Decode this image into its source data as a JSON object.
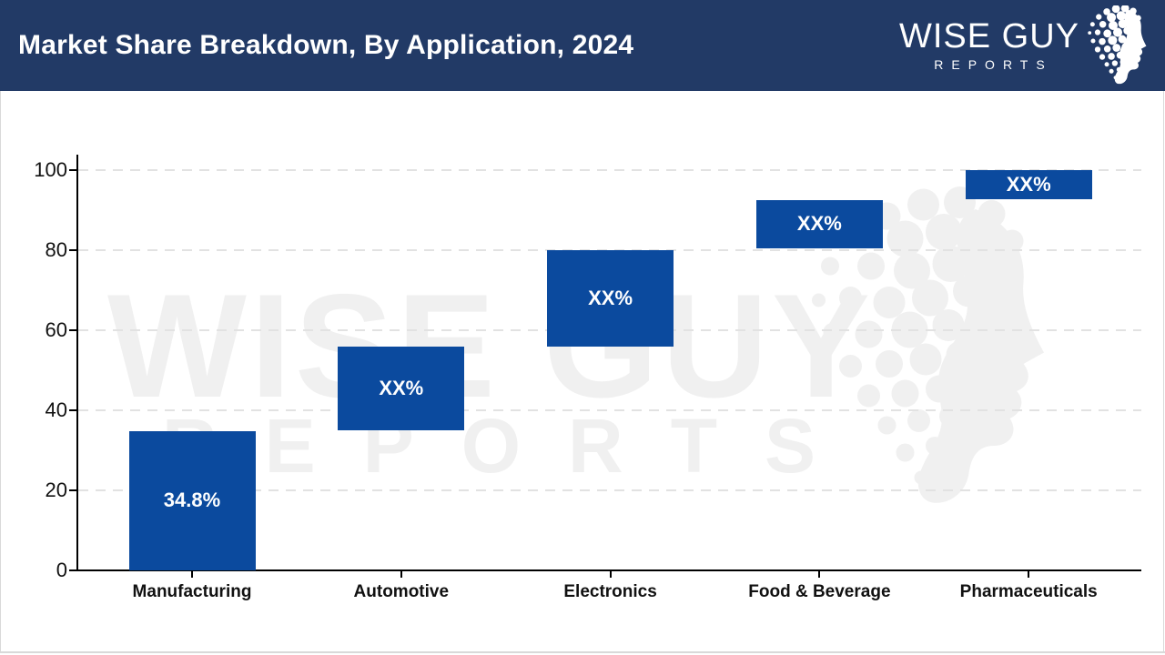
{
  "header": {
    "title": "Market Share Breakdown, By Application, 2024",
    "logo": {
      "name_line": "WISE GUY",
      "sub_line": "REPORTS"
    }
  },
  "watermark": {
    "line1": "WISE GUY",
    "line2": "REPORTS"
  },
  "colors": {
    "header_bg": "#223a66",
    "bar": "#0b4a9e",
    "grid": "#e2e2e2",
    "axis": "#000000",
    "watermark": "#f0f0f0",
    "frame_border": "#d9d9d9",
    "title_text": "#ffffff"
  },
  "chart_data": {
    "type": "bar",
    "subtype": "waterfall",
    "title": "Market Share Breakdown, By Application, 2024",
    "categories": [
      "Manufacturing",
      "Automotive",
      "Electronics",
      "Food & Beverage",
      "Pharmaceuticals"
    ],
    "segments": [
      {
        "category": "Manufacturing",
        "start": 0,
        "end": 34.8,
        "label": "34.8%"
      },
      {
        "category": "Automotive",
        "start": 35,
        "end": 56,
        "label": "XX%"
      },
      {
        "category": "Electronics",
        "start": 56,
        "end": 80,
        "label": "XX%"
      },
      {
        "category": "Food & Beverage",
        "start": 80.5,
        "end": 92.5,
        "label": "XX%"
      },
      {
        "category": "Pharmaceuticals",
        "start": 92.7,
        "end": 100,
        "label": "XX%"
      }
    ],
    "yticks": [
      0,
      20,
      40,
      60,
      80,
      100
    ],
    "ytick_labels": [
      "0",
      "20",
      "40",
      "60",
      "80",
      "100"
    ],
    "ylim": [
      0,
      105
    ],
    "xlabel": "",
    "ylabel": "",
    "grid": "horizontal-dashed",
    "legend": "none",
    "bar_color": "#0b4a9e",
    "value_unit": "%"
  }
}
